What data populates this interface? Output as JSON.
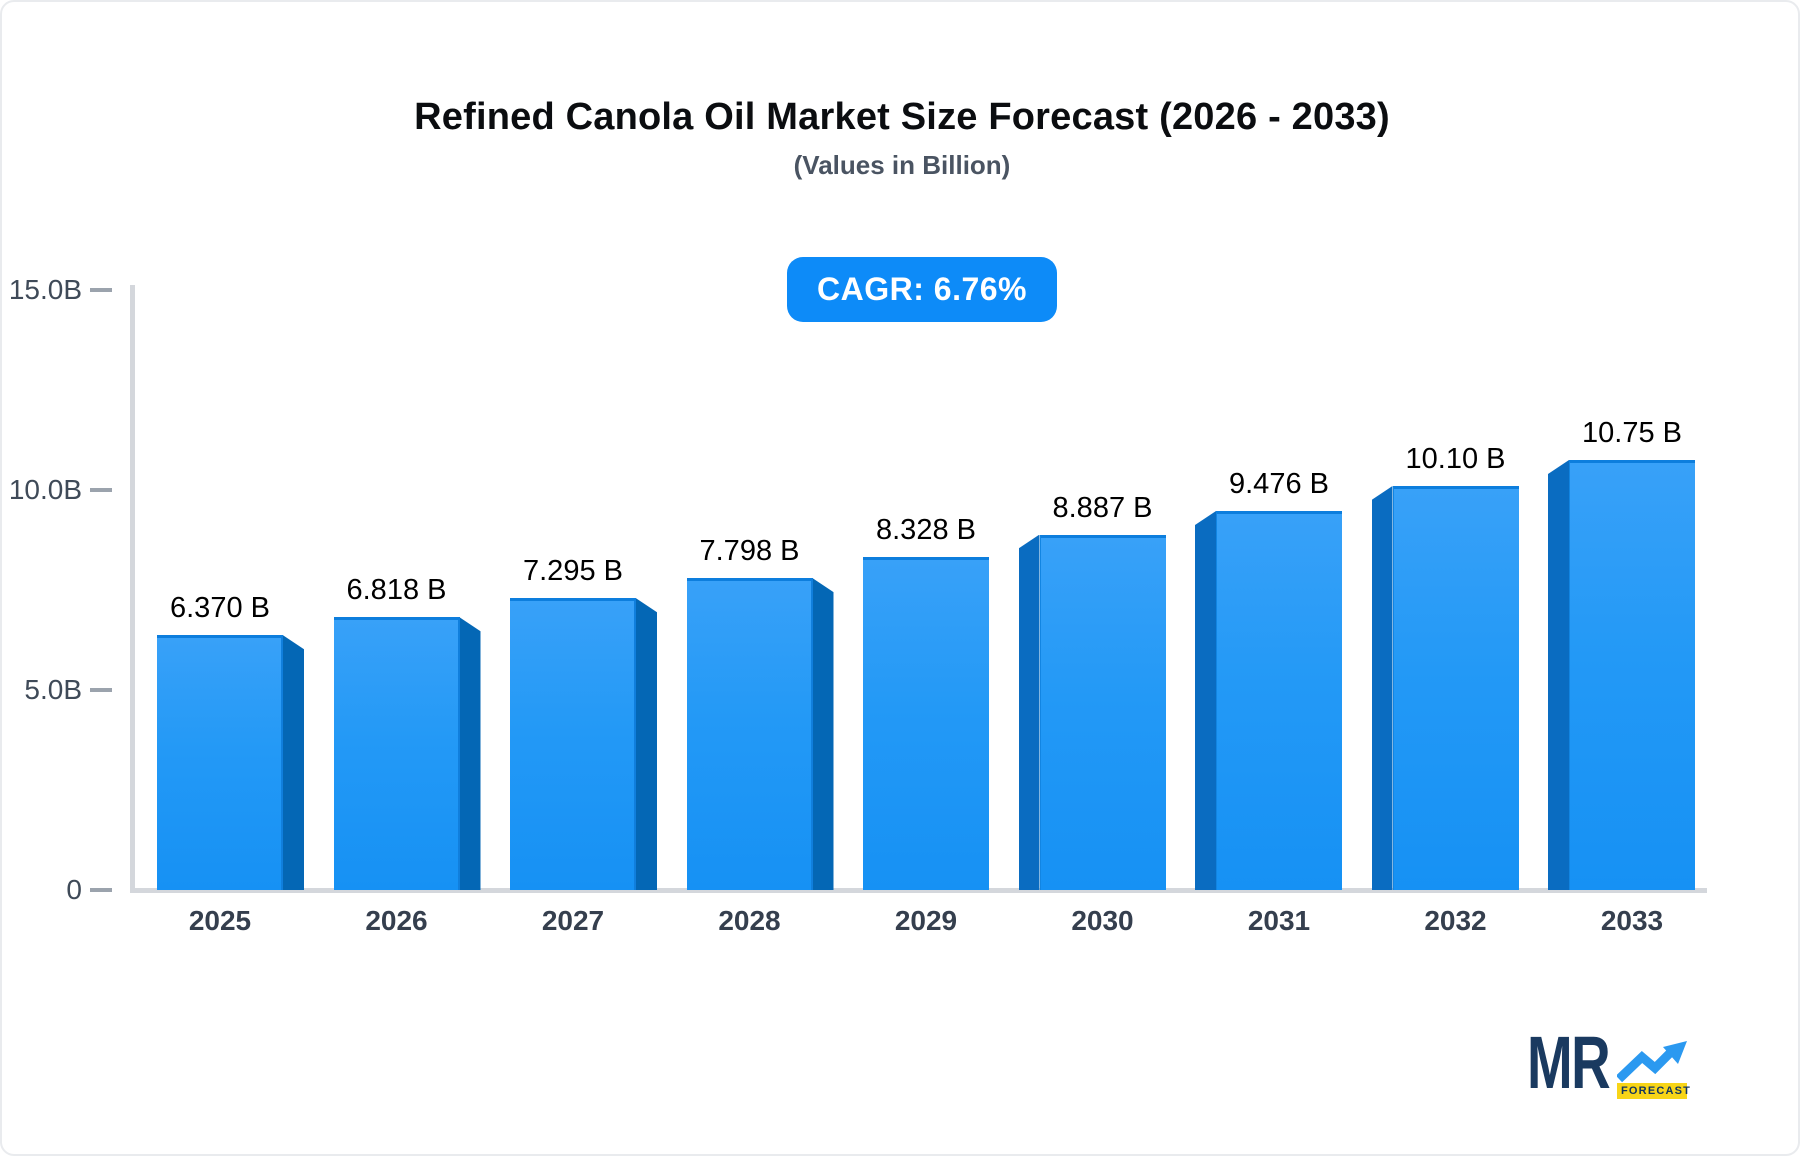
{
  "header": {
    "title": "Refined Canola Oil Market Size Forecast (2026 - 2033)",
    "subtitle": "(Values in Billion)",
    "cagr_badge": "CAGR: 6.76%"
  },
  "chart_data": {
    "type": "bar",
    "title": "Refined Canola Oil Market Size Forecast (2026 - 2033)",
    "subtitle": "(Values in Billion)",
    "unit": "Billion",
    "cagr_percent": 6.76,
    "categories": [
      "2025",
      "2026",
      "2027",
      "2028",
      "2029",
      "2030",
      "2031",
      "2032",
      "2033"
    ],
    "values": [
      6.37,
      6.818,
      7.295,
      7.798,
      8.328,
      8.887,
      9.476,
      10.1,
      10.75
    ],
    "value_labels": [
      "6.370 B",
      "6.818 B",
      "7.295 B",
      "7.798 B",
      "8.328 B",
      "8.887 B",
      "9.476 B",
      "10.10 B",
      "10.75 B"
    ],
    "y_axis": {
      "range": [
        0,
        15
      ],
      "ticks": [
        {
          "label": "15.0B",
          "value": 15
        },
        {
          "label": "10.0B",
          "value": 10
        },
        {
          "label": "5.0B",
          "value": 5
        },
        {
          "label": "0",
          "value": 0
        }
      ]
    },
    "legend": "none",
    "grid": "off",
    "bar_color": "#2196f3",
    "bar_side_color": "#0a6cc1"
  },
  "logo": {
    "mr": "MR",
    "forecast": "FORECAST"
  }
}
